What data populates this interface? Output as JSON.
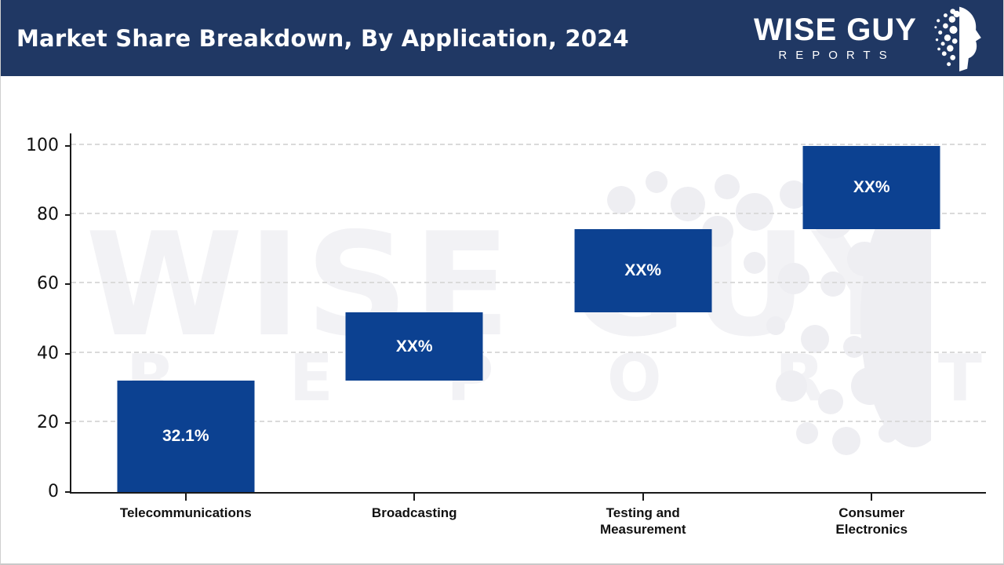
{
  "header": {
    "title": "Market Share Breakdown, By Application, 2024",
    "bg_color": "#203864",
    "logo": {
      "line1": "WISE GUY",
      "line2": "REPORTS"
    }
  },
  "watermark": {
    "line1": "WISE GUY",
    "line2": "R E P O R T S"
  },
  "chart_data": {
    "type": "bar",
    "variant": "floating-segment-waterfall",
    "title": "Market Share Breakdown, By Application, 2024",
    "categories": [
      "Telecommunications",
      "Broadcasting",
      "Testing and Measurement",
      "Consumer Electronics"
    ],
    "x_tick_label_lines": [
      [
        "Telecommunications"
      ],
      [
        "Broadcasting"
      ],
      [
        "Testing and",
        "Measurement"
      ],
      [
        "Consumer",
        "Electronics"
      ]
    ],
    "bars": [
      {
        "category": "Telecommunications",
        "start": 0,
        "end": 32.1,
        "label": "32.1%"
      },
      {
        "category": "Broadcasting",
        "start": 32.1,
        "end": 52,
        "label": "XX%"
      },
      {
        "category": "Testing and Measurement",
        "start": 52,
        "end": 76,
        "label": "XX%"
      },
      {
        "category": "Consumer Electronics",
        "start": 76,
        "end": 100,
        "label": "XX%"
      }
    ],
    "ylim": [
      0,
      100
    ],
    "yticks": [
      0,
      20,
      40,
      60,
      80,
      100
    ],
    "bar_color": "#0c4191",
    "bar_label_color": "#ffffff",
    "grid": "horizontal-dashed",
    "legend": "none"
  }
}
